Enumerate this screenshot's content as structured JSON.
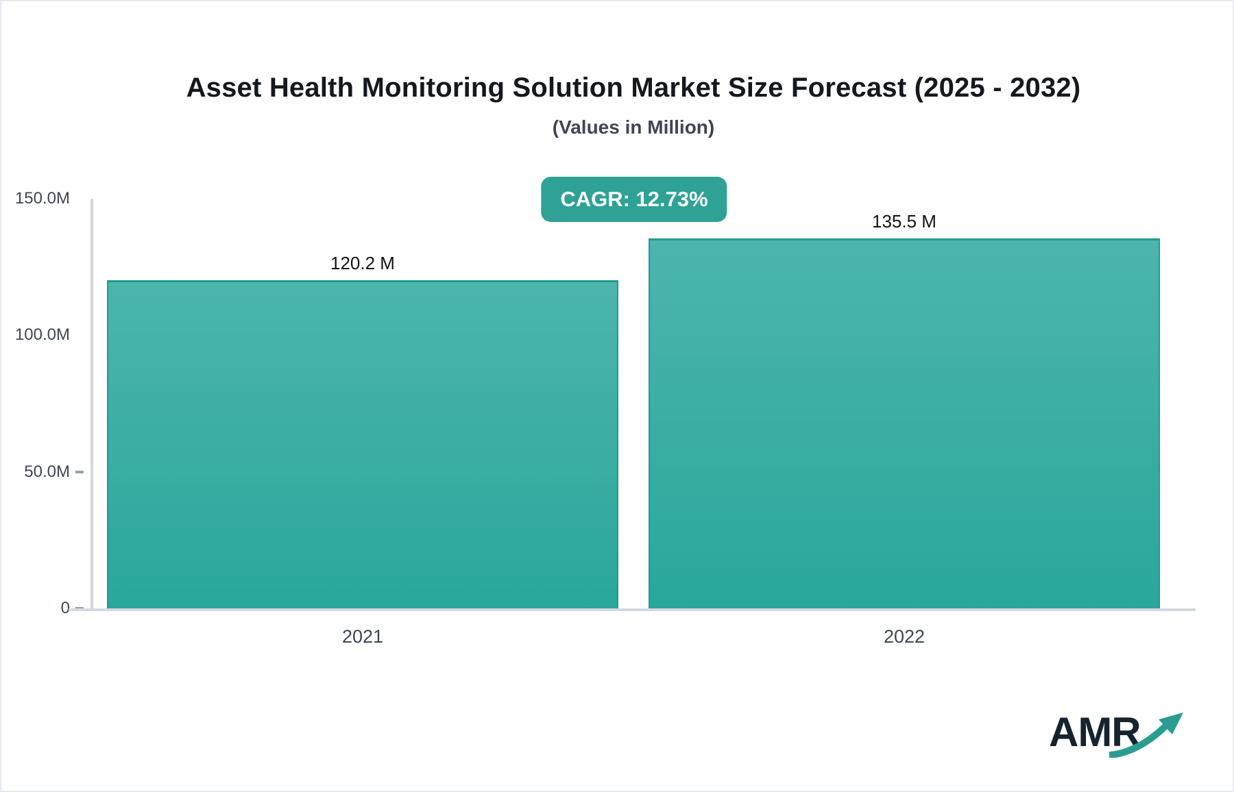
{
  "header": {
    "title": "Asset Health Monitoring Solution Market Size Forecast (2025 - 2032)",
    "subtitle": "(Values in Million)"
  },
  "badge": {
    "label": "CAGR: 12.73%"
  },
  "chart_data": {
    "type": "bar",
    "title": "Asset Health Monitoring Solution Market Size Forecast (2025 - 2032)",
    "subtitle": "(Values in Million)",
    "unit": "Million",
    "categories": [
      "2021",
      "2022"
    ],
    "values": [
      120.2,
      135.5
    ],
    "value_labels": [
      "120.2 M",
      "135.5 M"
    ],
    "xlabel": "",
    "ylabel": "",
    "ylim": [
      0,
      150
    ],
    "yticks": [
      {
        "label": "150.0M",
        "value": 150,
        "tick": false
      },
      {
        "label": "100.0M",
        "value": 100,
        "tick": false
      },
      {
        "label": "50.0M",
        "value": 50,
        "tick": true
      },
      {
        "label": "0",
        "value": 0,
        "tick": true
      }
    ],
    "grid": false,
    "legend": "none"
  },
  "logo": {
    "text": "AMR"
  },
  "colors": {
    "bar_top": "#4db5ab",
    "bar_bottom": "#29a79b",
    "bar_edge": "#1f9c8e",
    "badge_bg": "#2da295",
    "axis_line": "#d5d8de",
    "tick_mark": "#9aa0ab",
    "text_dark": "#15181c",
    "text_slate": "#3d4654",
    "logo_text": "#15242e",
    "logo_arrow": "#2a9d90"
  }
}
